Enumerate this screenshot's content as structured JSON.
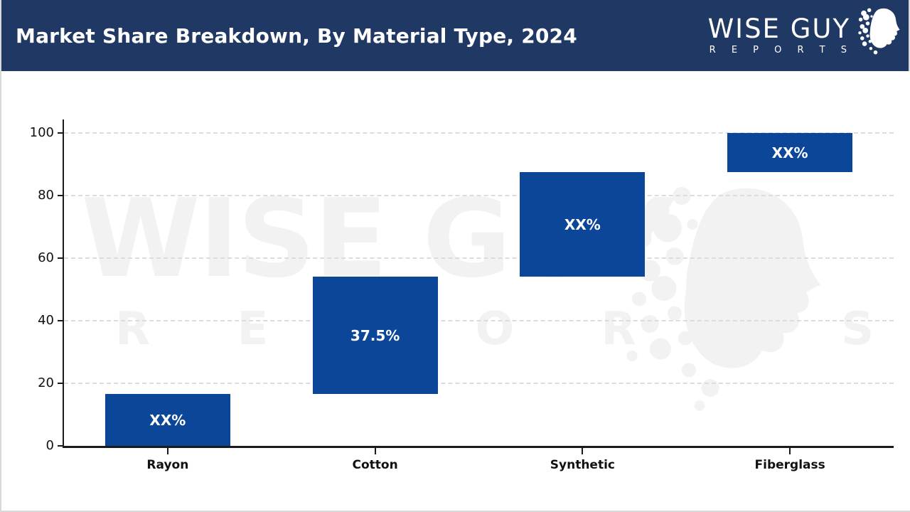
{
  "header": {
    "title": "Market Share Breakdown, By Material Type, 2024",
    "logo_line1": "WISE GUY",
    "logo_line2": "R E P O R T S"
  },
  "watermark": {
    "line1": "WISE GUY",
    "line2": "R E P O R T S"
  },
  "colors": {
    "header_bg": "#203864",
    "bar": "#0B4698",
    "bar_label": "#FFFFFF",
    "grid": "#DCDCDC",
    "axis": "#1A1A1A",
    "watermark": "#F2F2F2",
    "edge_border": "#D9D9D9"
  },
  "chart_data": {
    "type": "bar",
    "subtype": "waterfall",
    "title": "Market Share Breakdown, By Material Type, 2024",
    "xlabel": "",
    "ylabel": "",
    "ylim": [
      0,
      100
    ],
    "yticks": [
      0,
      20,
      40,
      60,
      80,
      100
    ],
    "grid": "horizontal-dashed",
    "legend": "none",
    "categories": [
      "Rayon",
      "Cotton",
      "Synthetic",
      "Fiberglass"
    ],
    "bars": [
      {
        "category": "Rayon",
        "label": "XX%",
        "start": 0,
        "end": 16.5
      },
      {
        "category": "Cotton",
        "label": "37.5%",
        "start": 16.5,
        "end": 54
      },
      {
        "category": "Synthetic",
        "label": "XX%",
        "start": 54,
        "end": 87.5
      },
      {
        "category": "Fiberglass",
        "label": "XX%",
        "start": 87.5,
        "end": 100
      }
    ]
  }
}
